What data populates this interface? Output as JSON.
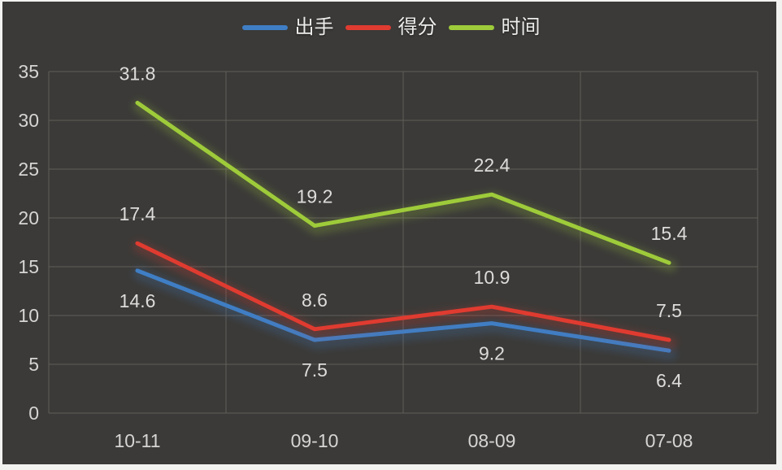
{
  "window": {
    "background": "#3b3a38",
    "frame_color": "#f2f2f0"
  },
  "chart_data": {
    "type": "line",
    "title": "",
    "xlabel": "",
    "ylabel": "",
    "categories": [
      "10-11",
      "09-10",
      "08-09",
      "07-08"
    ],
    "series": [
      {
        "name": "出手",
        "color": "#3f7ec4",
        "values": [
          14.6,
          7.5,
          9.2,
          6.4
        ],
        "label_position": "below"
      },
      {
        "name": "得分",
        "color": "#e03b30",
        "values": [
          17.4,
          8.6,
          10.9,
          7.5
        ],
        "label_position": "above"
      },
      {
        "name": "时间",
        "color": "#9ecb3a",
        "values": [
          31.8,
          19.2,
          22.4,
          15.4
        ],
        "label_position": "above"
      }
    ],
    "ylim": [
      0,
      35
    ],
    "yticks": [
      0,
      5,
      10,
      15,
      20,
      25,
      30,
      35
    ],
    "grid": true,
    "legend_position": "top",
    "axis_text_color": "#d6d5d3",
    "data_label_color": "#dddcda",
    "gridline_color": "#605d59"
  }
}
